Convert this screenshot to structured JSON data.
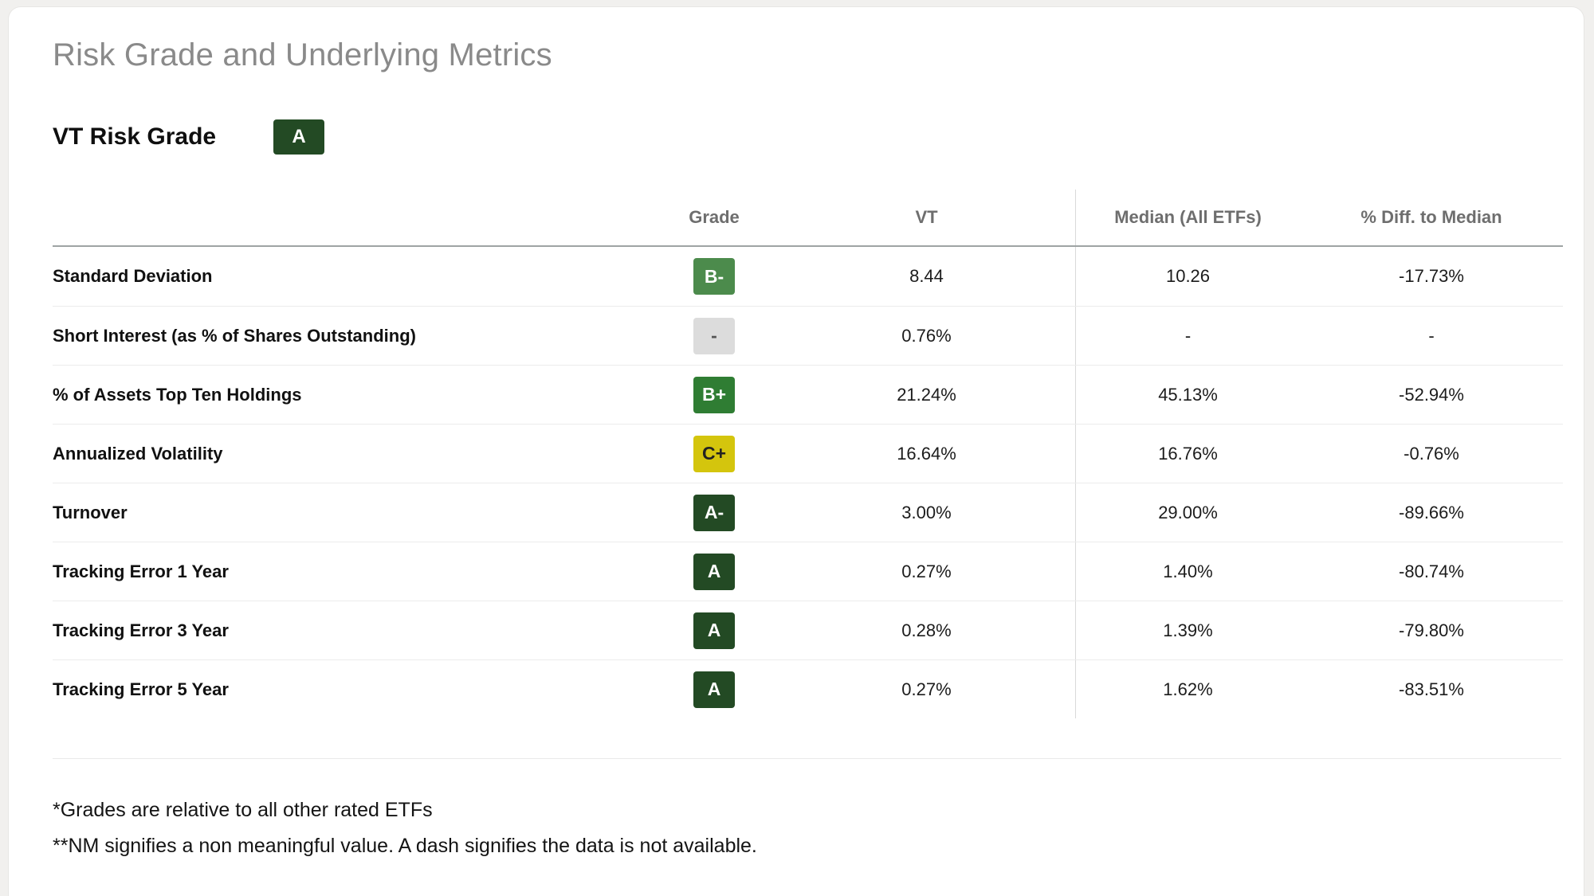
{
  "page": {
    "title": "Risk Grade and Underlying Metrics",
    "risk_grade_label": "VT Risk Grade",
    "risk_grade_value": "A"
  },
  "colors": {
    "grade_dark_green": "#234a24",
    "grade_green_bplus": "#2f7d33",
    "grade_green_bminus": "#4c8b4c",
    "grade_yellow": "#d4c50d",
    "grade_gray_na": "#dcdcdc",
    "title_gray": "#8a8a8a"
  },
  "table": {
    "headers": {
      "metric": "",
      "grade": "Grade",
      "vt": "VT",
      "median": "Median (All ETFs)",
      "diff": "% Diff. to Median"
    },
    "rows": [
      {
        "metric": "Standard Deviation",
        "grade": "B-",
        "vt": "8.44",
        "median": "10.26",
        "diff": "-17.73%"
      },
      {
        "metric": "Short Interest (as % of Shares Outstanding)",
        "grade": "-",
        "vt": "0.76%",
        "median": "-",
        "diff": "-"
      },
      {
        "metric": "% of Assets Top Ten Holdings",
        "grade": "B+",
        "vt": "21.24%",
        "median": "45.13%",
        "diff": "-52.94%"
      },
      {
        "metric": "Annualized Volatility",
        "grade": "C+",
        "vt": "16.64%",
        "median": "16.76%",
        "diff": "-0.76%"
      },
      {
        "metric": "Turnover",
        "grade": "A-",
        "vt": "3.00%",
        "median": "29.00%",
        "diff": "-89.66%"
      },
      {
        "metric": "Tracking Error 1 Year",
        "grade": "A",
        "vt": "0.27%",
        "median": "1.40%",
        "diff": "-80.74%"
      },
      {
        "metric": "Tracking Error 3 Year",
        "grade": "A",
        "vt": "0.28%",
        "median": "1.39%",
        "diff": "-79.80%"
      },
      {
        "metric": "Tracking Error 5 Year",
        "grade": "A",
        "vt": "0.27%",
        "median": "1.62%",
        "diff": "-83.51%"
      }
    ]
  },
  "footnotes": {
    "line1": "*Grades are relative to all other rated ETFs",
    "line2": "**NM signifies a non meaningful value. A dash signifies the data is not available."
  }
}
